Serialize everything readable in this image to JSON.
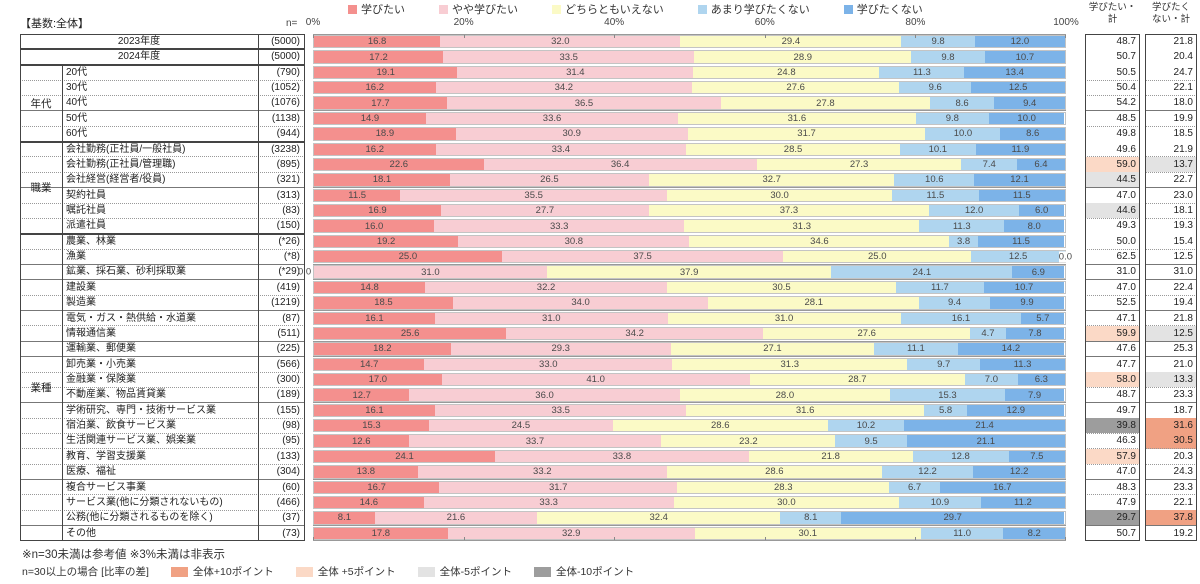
{
  "header": {
    "basis_label": "【基数:全体】",
    "n_label": "n=",
    "axis_ticks": [
      "0%",
      "20%",
      "40%",
      "60%",
      "80%",
      "100%"
    ],
    "want_total_header": "学びたい・\n計",
    "notwant_total_header": "学びたく\nない・計"
  },
  "legend": [
    {
      "label": "学びたい",
      "color": "#F4908E"
    },
    {
      "label": "やや学びたい",
      "color": "#F8CDD3"
    },
    {
      "label": "どちらともいえない",
      "color": "#FBFAC6"
    },
    {
      "label": "あまり学びたくない",
      "color": "#AFD5EF"
    },
    {
      "label": "学びたくない",
      "color": "#7CB3E8"
    }
  ],
  "notes": {
    "note1": "※n=30未満は参考値 ※3%未満は非表示",
    "note2": "n=30以上の場合 [比率の差]",
    "diff_legend": [
      {
        "key": "p10",
        "label": "全体+10ポイント",
        "color": "#F0A183"
      },
      {
        "key": "p5",
        "label": "全体 +5ポイント",
        "color": "#FBD9C6"
      },
      {
        "key": "m5",
        "label": "全体-5ポイント",
        "color": "#E3E3E3"
      },
      {
        "key": "m10",
        "label": "全体-10ポイント",
        "color": "#9D9D9D"
      }
    ]
  },
  "chart_data": {
    "type": "bar",
    "stacked": true,
    "orientation": "horizontal",
    "unit": "%",
    "xlim": [
      0,
      100
    ],
    "x_ticks": [
      "0%",
      "20%",
      "40%",
      "60%",
      "80%",
      "100%"
    ],
    "series_labels": [
      "学びたい",
      "やや学びたい",
      "どちらともいえない",
      "あまり学びたくない",
      "学びたくない"
    ],
    "series_colors": [
      "#F4908E",
      "#F8CDD3",
      "#FBFAC6",
      "#AFD5EF",
      "#7CB3E8"
    ],
    "total_columns": [
      "学びたい・計",
      "学びたくない・計"
    ],
    "rows": [
      {
        "group": "",
        "label": "2023年度",
        "n": "(5000)",
        "values": [
          16.8,
          32.0,
          29.4,
          9.8,
          12.0
        ],
        "want": "48.7",
        "notwant": "21.8",
        "want_hl": "",
        "notwant_hl": "",
        "sep": "none"
      },
      {
        "group": "",
        "label": "2024年度",
        "n": "(5000)",
        "values": [
          17.2,
          33.5,
          28.9,
          9.8,
          10.7
        ],
        "want": "50.7",
        "notwant": "20.4",
        "want_hl": "",
        "notwant_hl": "",
        "sep": "none"
      },
      {
        "group": "年代",
        "label": "20代",
        "n": "(790)",
        "values": [
          19.1,
          31.4,
          24.8,
          11.3,
          13.4
        ],
        "want": "50.5",
        "notwant": "24.7",
        "want_hl": "",
        "notwant_hl": "",
        "sep": "none"
      },
      {
        "group": "年代",
        "label": "30代",
        "n": "(1052)",
        "values": [
          16.2,
          34.2,
          27.6,
          9.6,
          12.5
        ],
        "want": "50.4",
        "notwant": "22.1",
        "want_hl": "",
        "notwant_hl": "",
        "sep": "dotted"
      },
      {
        "group": "年代",
        "label": "40代",
        "n": "(1076)",
        "values": [
          17.7,
          36.5,
          27.8,
          8.6,
          9.4
        ],
        "want": "54.2",
        "notwant": "18.0",
        "want_hl": "",
        "notwant_hl": "",
        "sep": "dotted"
      },
      {
        "group": "年代",
        "label": "50代",
        "n": "(1138)",
        "values": [
          14.9,
          33.6,
          31.6,
          9.8,
          10.0
        ],
        "want": "48.5",
        "notwant": "19.9",
        "want_hl": "",
        "notwant_hl": "",
        "sep": "solid"
      },
      {
        "group": "年代",
        "label": "60代",
        "n": "(944)",
        "values": [
          18.9,
          30.9,
          31.7,
          10.0,
          8.6
        ],
        "want": "49.8",
        "notwant": "18.5",
        "want_hl": "",
        "notwant_hl": "",
        "sep": "dotted"
      },
      {
        "group": "職業",
        "label": "会社勤務(正社員/一般社員)",
        "n": "(3238)",
        "values": [
          16.2,
          33.4,
          28.5,
          10.1,
          11.9
        ],
        "want": "49.6",
        "notwant": "21.9",
        "want_hl": "",
        "notwant_hl": "",
        "sep": "none"
      },
      {
        "group": "職業",
        "label": "会社勤務(正社員/管理職)",
        "n": "(895)",
        "values": [
          22.6,
          36.4,
          27.3,
          7.4,
          6.4
        ],
        "want": "59.0",
        "notwant": "13.7",
        "want_hl": "p5",
        "notwant_hl": "m5",
        "sep": "dotted"
      },
      {
        "group": "職業",
        "label": "会社経営(経営者/役員)",
        "n": "(321)",
        "values": [
          18.1,
          26.5,
          32.7,
          10.6,
          12.1
        ],
        "want": "44.5",
        "notwant": "22.7",
        "want_hl": "m5",
        "notwant_hl": "",
        "sep": "dotted"
      },
      {
        "group": "職業",
        "label": "契約社員",
        "n": "(313)",
        "values": [
          11.5,
          35.5,
          30.0,
          11.5,
          11.5
        ],
        "want": "47.0",
        "notwant": "23.0",
        "want_hl": "",
        "notwant_hl": "",
        "sep": "solid"
      },
      {
        "group": "職業",
        "label": "嘱託社員",
        "n": "(83)",
        "values": [
          16.9,
          27.7,
          37.3,
          12.0,
          6.0
        ],
        "want": "44.6",
        "notwant": "18.1",
        "want_hl": "m5",
        "notwant_hl": "",
        "sep": "dotted"
      },
      {
        "group": "職業",
        "label": "派遣社員",
        "n": "(150)",
        "values": [
          16.0,
          33.3,
          31.3,
          11.3,
          8.0
        ],
        "want": "49.3",
        "notwant": "19.3",
        "want_hl": "",
        "notwant_hl": "",
        "sep": "dotted"
      },
      {
        "group": "業種",
        "label": "農業、林業",
        "n": "(*26)",
        "values": [
          19.2,
          30.8,
          34.6,
          3.8,
          11.5
        ],
        "want": "50.0",
        "notwant": "15.4",
        "want_hl": "",
        "notwant_hl": "",
        "sep": "none"
      },
      {
        "group": "業種",
        "label": "漁業",
        "n": "(*8)",
        "values": [
          25.0,
          37.5,
          25.0,
          12.5,
          0.0
        ],
        "want": "62.5",
        "notwant": "12.5",
        "want_hl": "",
        "notwant_hl": "",
        "sep": "dotted"
      },
      {
        "group": "業種",
        "label": "鉱業、採石業、砂利採取業",
        "n": "(*29)",
        "values": [
          0.0,
          31.0,
          37.9,
          24.1,
          6.9
        ],
        "want": "31.0",
        "notwant": "31.0",
        "want_hl": "",
        "notwant_hl": "",
        "sep": "solid"
      },
      {
        "group": "業種",
        "label": "建設業",
        "n": "(419)",
        "values": [
          14.8,
          32.2,
          30.5,
          11.7,
          10.7
        ],
        "want": "47.0",
        "notwant": "22.4",
        "want_hl": "",
        "notwant_hl": "",
        "sep": "solid"
      },
      {
        "group": "業種",
        "label": "製造業",
        "n": "(1219)",
        "values": [
          18.5,
          34.0,
          28.1,
          9.4,
          9.9
        ],
        "want": "52.5",
        "notwant": "19.4",
        "want_hl": "",
        "notwant_hl": "",
        "sep": "dotted"
      },
      {
        "group": "業種",
        "label": "電気・ガス・熱供給・水道業",
        "n": "(87)",
        "values": [
          16.1,
          31.0,
          31.0,
          16.1,
          5.7
        ],
        "want": "47.1",
        "notwant": "21.8",
        "want_hl": "",
        "notwant_hl": "",
        "sep": "solid"
      },
      {
        "group": "業種",
        "label": "情報通信業",
        "n": "(511)",
        "values": [
          25.6,
          34.2,
          27.6,
          4.7,
          7.8
        ],
        "want": "59.9",
        "notwant": "12.5",
        "want_hl": "p5",
        "notwant_hl": "m5",
        "sep": "dotted"
      },
      {
        "group": "業種",
        "label": "運輸業、郵便業",
        "n": "(225)",
        "values": [
          18.2,
          29.3,
          27.1,
          11.1,
          14.2
        ],
        "want": "47.6",
        "notwant": "25.3",
        "want_hl": "",
        "notwant_hl": "",
        "sep": "solid"
      },
      {
        "group": "業種",
        "label": "卸売業・小売業",
        "n": "(566)",
        "values": [
          14.7,
          33.0,
          31.3,
          9.7,
          11.3
        ],
        "want": "47.7",
        "notwant": "21.0",
        "want_hl": "",
        "notwant_hl": "",
        "sep": "solid"
      },
      {
        "group": "業種",
        "label": "金融業・保険業",
        "n": "(300)",
        "values": [
          17.0,
          41.0,
          28.7,
          7.0,
          6.3
        ],
        "want": "58.0",
        "notwant": "13.3",
        "want_hl": "p5",
        "notwant_hl": "m5",
        "sep": "dotted"
      },
      {
        "group": "業種",
        "label": "不動産業、物品賃貸業",
        "n": "(189)",
        "values": [
          12.7,
          36.0,
          28.0,
          15.3,
          7.9
        ],
        "want": "48.7",
        "notwant": "23.3",
        "want_hl": "",
        "notwant_hl": "",
        "sep": "dotted"
      },
      {
        "group": "業種",
        "label": "学術研究、専門・技術サービス業",
        "n": "(155)",
        "values": [
          16.1,
          33.5,
          31.6,
          5.8,
          12.9
        ],
        "want": "49.7",
        "notwant": "18.7",
        "want_hl": "",
        "notwant_hl": "",
        "sep": "solid"
      },
      {
        "group": "業種",
        "label": "宿泊業、飲食サービス業",
        "n": "(98)",
        "values": [
          15.3,
          24.5,
          28.6,
          10.2,
          21.4
        ],
        "want": "39.8",
        "notwant": "31.6",
        "want_hl": "m10",
        "notwant_hl": "p10",
        "sep": "dotted"
      },
      {
        "group": "業種",
        "label": "生活関連サービス業、娯楽業",
        "n": "(95)",
        "values": [
          12.6,
          33.7,
          23.2,
          9.5,
          21.1
        ],
        "want": "46.3",
        "notwant": "30.5",
        "want_hl": "",
        "notwant_hl": "p10",
        "sep": "dotted"
      },
      {
        "group": "業種",
        "label": "教育、学習支援業",
        "n": "(133)",
        "values": [
          24.1,
          33.8,
          21.8,
          12.8,
          7.5
        ],
        "want": "57.9",
        "notwant": "20.3",
        "want_hl": "p5",
        "notwant_hl": "",
        "sep": "dotted"
      },
      {
        "group": "業種",
        "label": "医療、福祉",
        "n": "(304)",
        "values": [
          13.8,
          33.2,
          28.6,
          12.2,
          12.2
        ],
        "want": "47.0",
        "notwant": "24.3",
        "want_hl": "",
        "notwant_hl": "",
        "sep": "dotted"
      },
      {
        "group": "業種",
        "label": "複合サービス事業",
        "n": "(60)",
        "values": [
          16.7,
          31.7,
          28.3,
          6.7,
          16.7
        ],
        "want": "48.3",
        "notwant": "23.3",
        "want_hl": "",
        "notwant_hl": "",
        "sep": "solid"
      },
      {
        "group": "業種",
        "label": "サービス業(他に分類されないもの)",
        "n": "(466)",
        "values": [
          14.6,
          33.3,
          30.0,
          10.9,
          11.2
        ],
        "want": "47.9",
        "notwant": "22.1",
        "want_hl": "",
        "notwant_hl": "",
        "sep": "dotted"
      },
      {
        "group": "業種",
        "label": "公務(他に分類されるものを除く)",
        "n": "(37)",
        "values": [
          8.1,
          21.6,
          32.4,
          8.1,
          29.7
        ],
        "want": "29.7",
        "notwant": "37.8",
        "want_hl": "m10",
        "notwant_hl": "p10",
        "sep": "dotted"
      },
      {
        "group": "業種",
        "label": "その他",
        "n": "(73)",
        "values": [
          17.8,
          32.9,
          30.1,
          11.0,
          8.2
        ],
        "want": "50.7",
        "notwant": "19.2",
        "want_hl": "",
        "notwant_hl": "",
        "sep": "solid"
      }
    ]
  }
}
